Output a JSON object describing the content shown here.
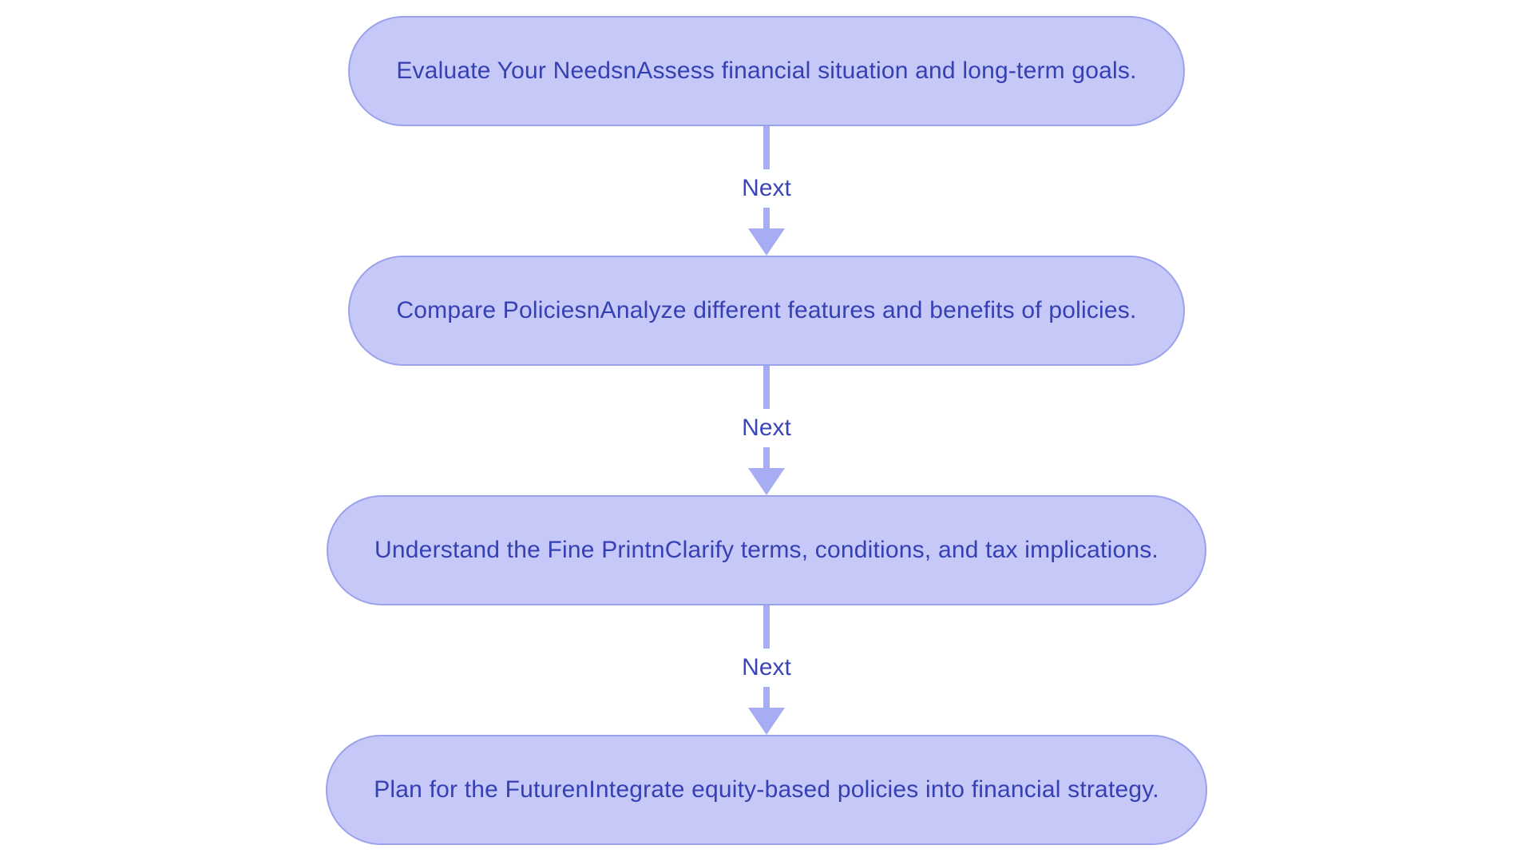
{
  "diagram": {
    "type": "flowchart",
    "direction": "top-down",
    "background_color": "#ffffff",
    "node_fill_color": "#c6c9f8",
    "node_border_color": "#9ba2ec",
    "node_text_color": "#3540b2",
    "edge_color": "#a6adf2",
    "edge_label_color": "#3a45b8",
    "nodes": [
      {
        "id": "step-1",
        "label": "Evaluate Your NeedsnAssess financial situation and long-term goals."
      },
      {
        "id": "step-2",
        "label": "Compare PoliciesnAnalyze different features and benefits of policies."
      },
      {
        "id": "step-3",
        "label": "Understand the Fine PrintnClarify terms, conditions, and tax implications."
      },
      {
        "id": "step-4",
        "label": "Plan for the FuturenIntegrate equity-based policies into financial strategy."
      }
    ],
    "edges": [
      {
        "from": "step-1",
        "to": "step-2",
        "label": "Next"
      },
      {
        "from": "step-2",
        "to": "step-3",
        "label": "Next"
      },
      {
        "from": "step-3",
        "to": "step-4",
        "label": "Next"
      }
    ]
  }
}
